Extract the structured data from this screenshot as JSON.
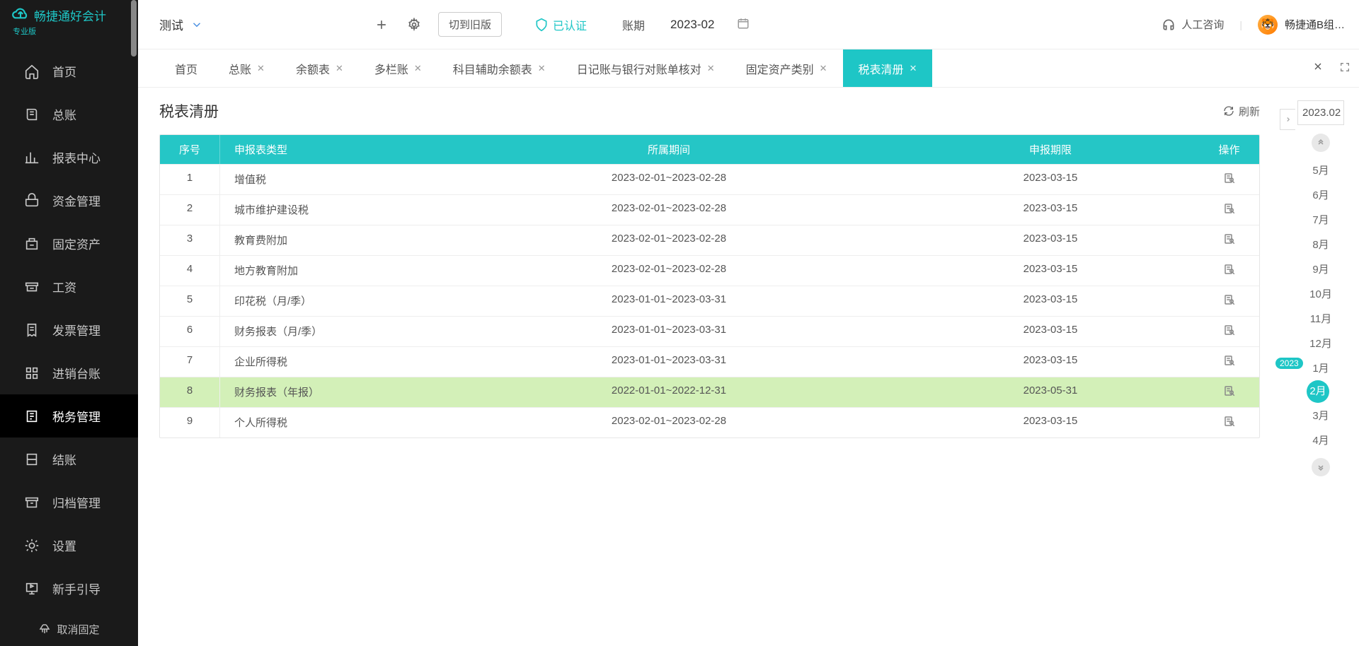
{
  "brand": {
    "name": "畅捷通好会计",
    "edition": "专业版",
    "primary_color": "#1ec6c6"
  },
  "sidebar": {
    "items": [
      {
        "label": "首页",
        "icon": "home"
      },
      {
        "label": "总账",
        "icon": "ledger"
      },
      {
        "label": "报表中心",
        "icon": "chart"
      },
      {
        "label": "资金管理",
        "icon": "fund"
      },
      {
        "label": "固定资产",
        "icon": "asset"
      },
      {
        "label": "工资",
        "icon": "salary"
      },
      {
        "label": "发票管理",
        "icon": "invoice"
      },
      {
        "label": "进销台账",
        "icon": "stock"
      },
      {
        "label": "税务管理",
        "icon": "tax",
        "active": true
      },
      {
        "label": "结账",
        "icon": "close-book"
      },
      {
        "label": "归档管理",
        "icon": "archive"
      },
      {
        "label": "设置",
        "icon": "settings"
      },
      {
        "label": "新手引导",
        "icon": "guide"
      }
    ],
    "footer": "取消固定"
  },
  "topbar": {
    "account_name": "测试",
    "old_version_btn": "切到旧版",
    "verified": "已认证",
    "period_label": "账期",
    "period_value": "2023-02",
    "consult": "人工咨询",
    "user_name": "畅捷通B组…"
  },
  "tabs": [
    {
      "label": "首页",
      "closable": false
    },
    {
      "label": "总账",
      "closable": true
    },
    {
      "label": "余额表",
      "closable": true
    },
    {
      "label": "多栏账",
      "closable": true
    },
    {
      "label": "科目辅助余额表",
      "closable": true
    },
    {
      "label": "日记账与银行对账单核对",
      "closable": true
    },
    {
      "label": "固定资产类别",
      "closable": true
    },
    {
      "label": "税表清册",
      "closable": true,
      "active": true
    }
  ],
  "page": {
    "title": "税表清册",
    "refresh": "刷新",
    "columns": {
      "idx": "序号",
      "type": "申报表类型",
      "period": "所属期间",
      "deadline": "申报期限",
      "action": "操作"
    },
    "rows": [
      {
        "idx": 1,
        "type": "增值税",
        "period": "2023-02-01~2023-02-28",
        "deadline": "2023-03-15"
      },
      {
        "idx": 2,
        "type": "城市维护建设税",
        "period": "2023-02-01~2023-02-28",
        "deadline": "2023-03-15"
      },
      {
        "idx": 3,
        "type": "教育费附加",
        "period": "2023-02-01~2023-02-28",
        "deadline": "2023-03-15"
      },
      {
        "idx": 4,
        "type": "地方教育附加",
        "period": "2023-02-01~2023-02-28",
        "deadline": "2023-03-15"
      },
      {
        "idx": 5,
        "type": "印花税（月/季）",
        "period": "2023-01-01~2023-03-31",
        "deadline": "2023-03-15"
      },
      {
        "idx": 6,
        "type": "财务报表（月/季）",
        "period": "2023-01-01~2023-03-31",
        "deadline": "2023-03-15"
      },
      {
        "idx": 7,
        "type": "企业所得税",
        "period": "2023-01-01~2023-03-31",
        "deadline": "2023-03-15"
      },
      {
        "idx": 8,
        "type": "财务报表（年报）",
        "period": "2022-01-01~2022-12-31",
        "deadline": "2023-05-31",
        "highlight": true
      },
      {
        "idx": 9,
        "type": "个人所得税",
        "period": "2023-02-01~2023-02-28",
        "deadline": "2023-03-15"
      }
    ]
  },
  "month_rail": {
    "display": "2023.02",
    "months_prev": [
      "5月",
      "6月",
      "7月",
      "8月",
      "9月",
      "10月",
      "11月",
      "12月"
    ],
    "year_break": "2023",
    "months_this": [
      {
        "label": "1月"
      },
      {
        "label": "2月",
        "current": true
      },
      {
        "label": "3月"
      },
      {
        "label": "4月"
      }
    ]
  },
  "colors": {
    "accent": "#1ec6c6",
    "table_header": "#25c6c6",
    "highlight_row": "#d3f0b8",
    "sidebar_bg": "#1a1a1a"
  }
}
